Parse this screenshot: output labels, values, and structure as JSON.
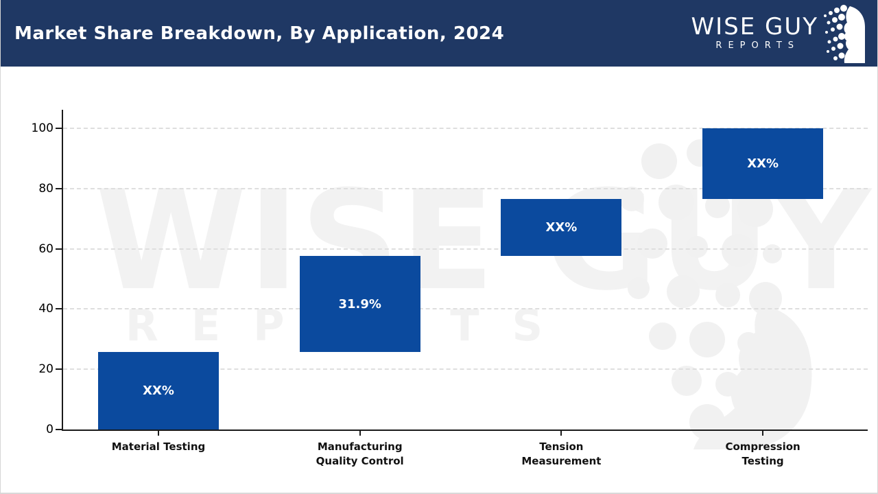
{
  "header": {
    "title": "Market Share Breakdown, By Application, 2024",
    "background": "#1f3864",
    "logo": {
      "line1": "WISE GUY",
      "line2": "REPORTS"
    }
  },
  "watermark": {
    "line1": "WISE GUY",
    "line2": "REPORTS"
  },
  "chart_data": {
    "type": "bar",
    "subtype": "floating-waterfall",
    "title": "Market Share Breakdown, By Application, 2024",
    "xlabel": "",
    "ylabel": "",
    "ylim": [
      0,
      106
    ],
    "yticks": [
      0,
      20,
      40,
      60,
      80,
      100
    ],
    "grid": "horizontal-dashed",
    "legend": "none",
    "bar_color": "#0b4a9e",
    "categories": [
      "Material Testing",
      "Manufacturing Quality Control",
      "Tension Measurement",
      "Compression Testing"
    ],
    "series": [
      {
        "lines": [
          "Material Testing"
        ],
        "start": 0,
        "end": 25.7,
        "value": 25.7,
        "label": "XX%"
      },
      {
        "lines": [
          "Manufacturing",
          "Quality Control"
        ],
        "start": 25.7,
        "end": 57.6,
        "value": 31.9,
        "label": "31.9%"
      },
      {
        "lines": [
          "Tension",
          "Measurement"
        ],
        "start": 57.6,
        "end": 76.6,
        "value": 19.0,
        "label": "XX%"
      },
      {
        "lines": [
          "Compression",
          "Testing"
        ],
        "start": 76.6,
        "end": 100,
        "value": 23.4,
        "label": "XX%"
      }
    ]
  }
}
